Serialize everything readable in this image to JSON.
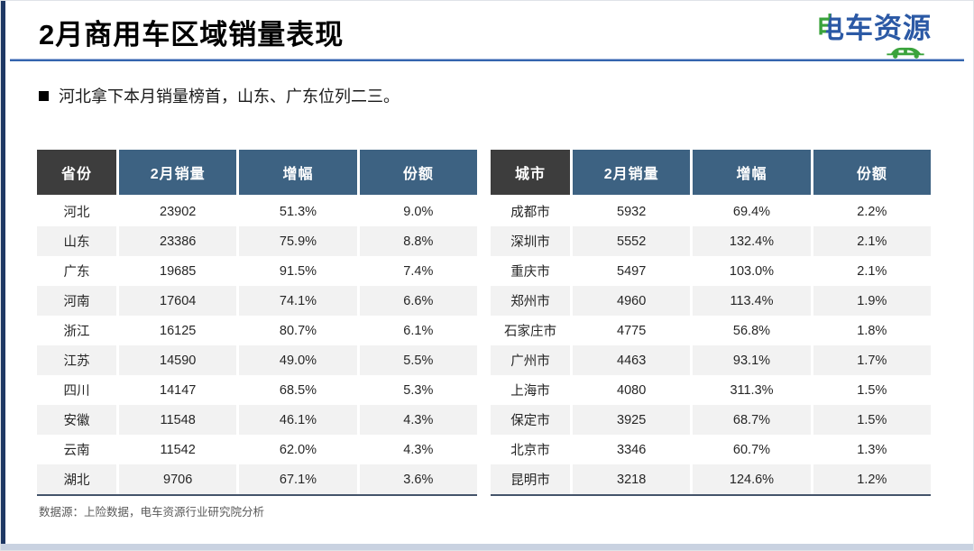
{
  "slide": {
    "title": "2月商用车区域销量表现",
    "bullet": "河北拿下本月销量榜首，山东、广东位列二三。",
    "footer": "数据源：上险数据，电车资源行业研究院分析"
  },
  "logo": {
    "accent_char": "电",
    "rest_text": "车资源"
  },
  "tables": [
    {
      "name": "province-sales",
      "headers": [
        "省份",
        "2月销量",
        "增幅",
        "份额"
      ],
      "rows": [
        [
          "河北",
          "23902",
          "51.3%",
          "9.0%"
        ],
        [
          "山东",
          "23386",
          "75.9%",
          "8.8%"
        ],
        [
          "广东",
          "19685",
          "91.5%",
          "7.4%"
        ],
        [
          "河南",
          "17604",
          "74.1%",
          "6.6%"
        ],
        [
          "浙江",
          "16125",
          "80.7%",
          "6.1%"
        ],
        [
          "江苏",
          "14590",
          "49.0%",
          "5.5%"
        ],
        [
          "四川",
          "14147",
          "68.5%",
          "5.3%"
        ],
        [
          "安徽",
          "11548",
          "46.1%",
          "4.3%"
        ],
        [
          "云南",
          "11542",
          "62.0%",
          "4.3%"
        ],
        [
          "湖北",
          "9706",
          "67.1%",
          "3.6%"
        ]
      ]
    },
    {
      "name": "city-sales",
      "headers": [
        "城市",
        "2月销量",
        "增幅",
        "份额"
      ],
      "rows": [
        [
          "成都市",
          "5932",
          "69.4%",
          "2.2%"
        ],
        [
          "深圳市",
          "5552",
          "132.4%",
          "2.1%"
        ],
        [
          "重庆市",
          "5497",
          "103.0%",
          "2.1%"
        ],
        [
          "郑州市",
          "4960",
          "113.4%",
          "1.9%"
        ],
        [
          "石家庄市",
          "4775",
          "56.8%",
          "1.8%"
        ],
        [
          "广州市",
          "4463",
          "93.1%",
          "1.7%"
        ],
        [
          "上海市",
          "4080",
          "311.3%",
          "1.5%"
        ],
        [
          "保定市",
          "3925",
          "68.7%",
          "1.5%"
        ],
        [
          "北京市",
          "3346",
          "60.7%",
          "1.3%"
        ],
        [
          "昆明市",
          "3218",
          "124.6%",
          "1.2%"
        ]
      ]
    }
  ],
  "colors": {
    "header_blue": "#3D6282",
    "header_dark": "#3D3D3D",
    "row_alt": "#F2F2F2",
    "accent_line": "#3465AE",
    "left_bar": "#1F3864",
    "bottom_strip": "#C9D2E1",
    "logo_blue": "#2B59A5",
    "logo_green": "#3AA33C",
    "footer_text": "#595959"
  }
}
